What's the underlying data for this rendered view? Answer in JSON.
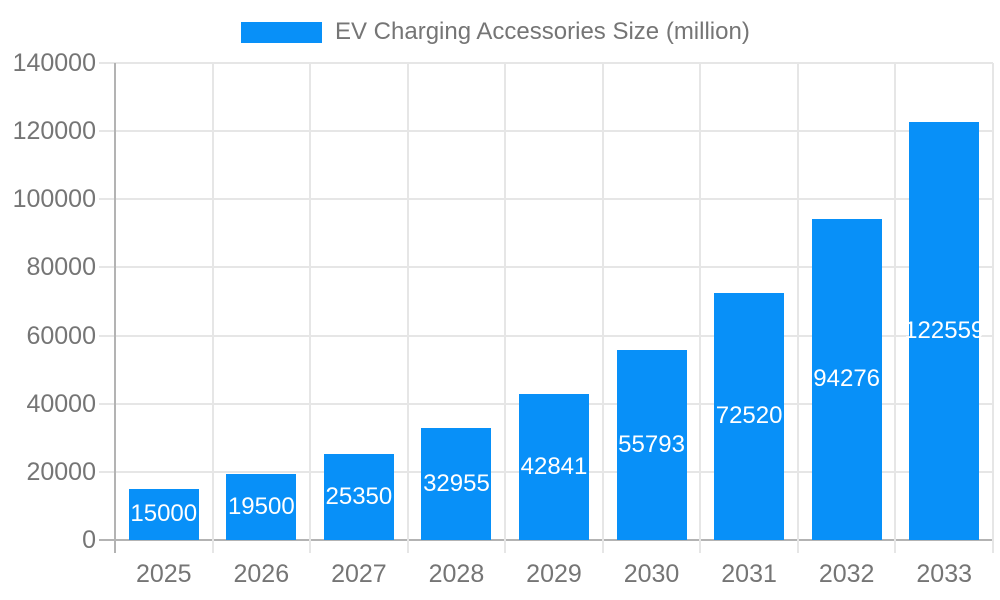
{
  "legend": {
    "label": "EV Charging Accessories Size (million)"
  },
  "colors": {
    "bar": "#0890f8",
    "grid": "#e6e6e6",
    "axis": "#b3b3b3",
    "text": "#757575",
    "bar_label": "#ffffff",
    "background": "#ffffff"
  },
  "chart_data": {
    "type": "bar",
    "title": "EV Charging Accessories Size (million)",
    "categories": [
      "2025",
      "2026",
      "2027",
      "2028",
      "2029",
      "2030",
      "2031",
      "2032",
      "2033"
    ],
    "values": [
      15000,
      19500,
      25350,
      32955,
      42841,
      55793,
      72520,
      94276,
      122559
    ],
    "xlabel": "",
    "ylabel": "",
    "ylim": [
      0,
      140000
    ],
    "ytick_interval": 20000,
    "ytick_labels": [
      "0",
      "20000",
      "40000",
      "60000",
      "80000",
      "100000",
      "120000",
      "140000"
    ],
    "grid": true,
    "legend_position": "top",
    "value_labels": "inside-center"
  }
}
